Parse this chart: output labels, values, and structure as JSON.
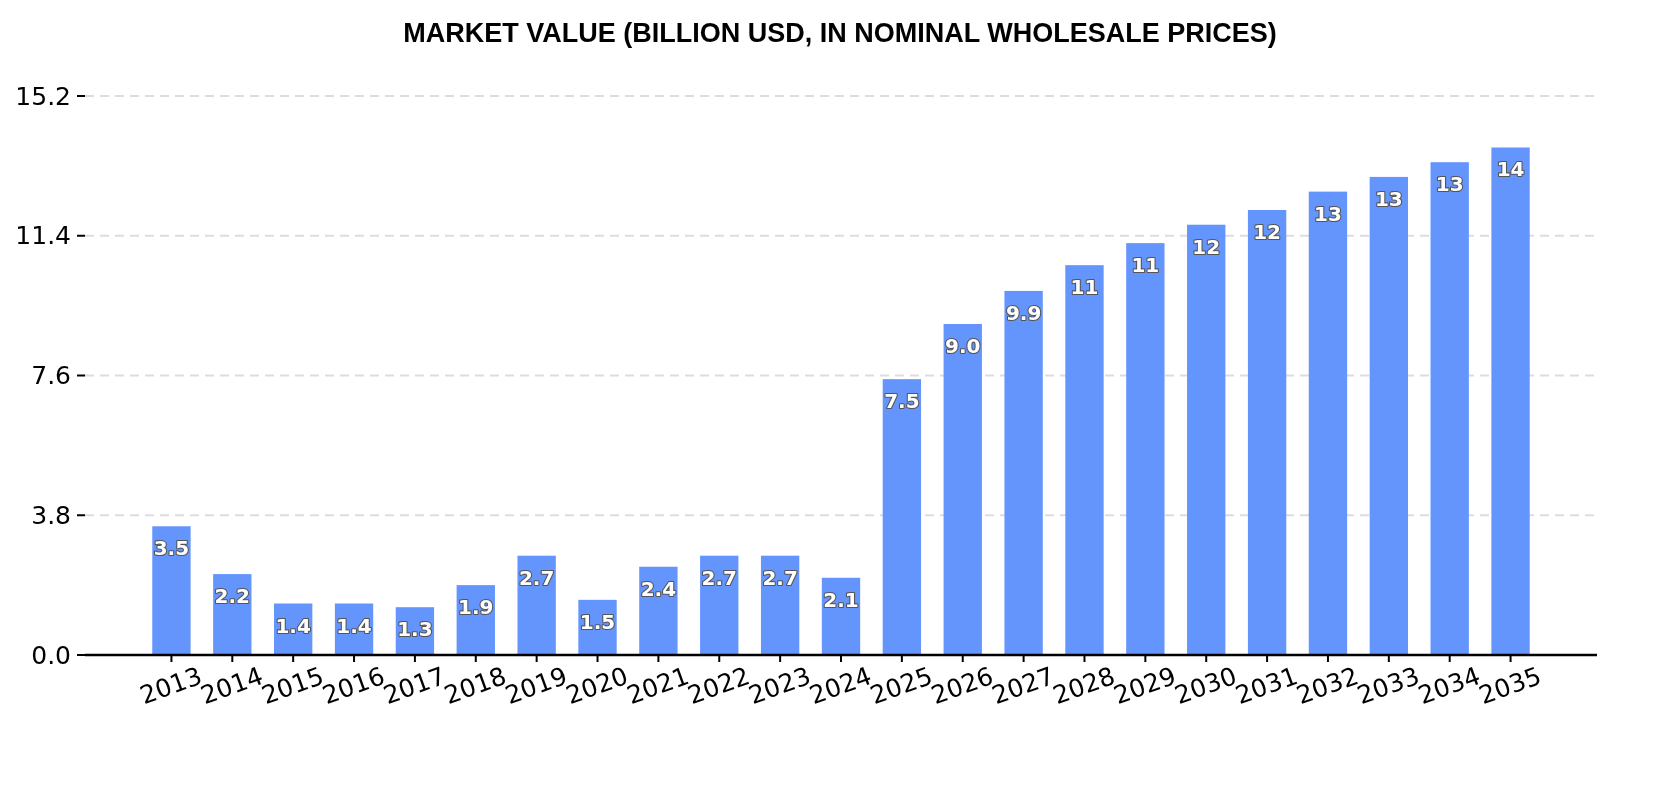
{
  "chart_data": {
    "type": "bar",
    "title": "MARKET VALUE (BILLION USD, IN NOMINAL WHOLESALE PRICES)",
    "categories": [
      "2013",
      "2014",
      "2015",
      "2016",
      "2017",
      "2018",
      "2019",
      "2020",
      "2021",
      "2022",
      "2023",
      "2024",
      "2025",
      "2026",
      "2027",
      "2028",
      "2029",
      "2030",
      "2031",
      "2032",
      "2033",
      "2034",
      "2035"
    ],
    "values": [
      3.5,
      2.2,
      1.4,
      1.4,
      1.3,
      1.9,
      2.7,
      1.5,
      2.4,
      2.7,
      2.7,
      2.1,
      7.5,
      9.0,
      9.9,
      10.6,
      11.2,
      11.7,
      12.1,
      12.6,
      13.0,
      13.4,
      13.8
    ],
    "value_labels": [
      "3.5",
      "2.2",
      "1.4",
      "1.4",
      "1.3",
      "1.9",
      "2.7",
      "1.5",
      "2.4",
      "2.7",
      "2.7",
      "2.1",
      "7.5",
      "9.0",
      "9.9",
      "11",
      "11",
      "12",
      "12",
      "13",
      "13",
      "13",
      "14"
    ],
    "color": "#6495fd",
    "ylim": [
      0,
      15.2
    ],
    "yticks": [
      {
        "value": 0,
        "label": "0.0"
      },
      3.8,
      7.6,
      11.4,
      15.2
    ],
    "grid": "y"
  }
}
